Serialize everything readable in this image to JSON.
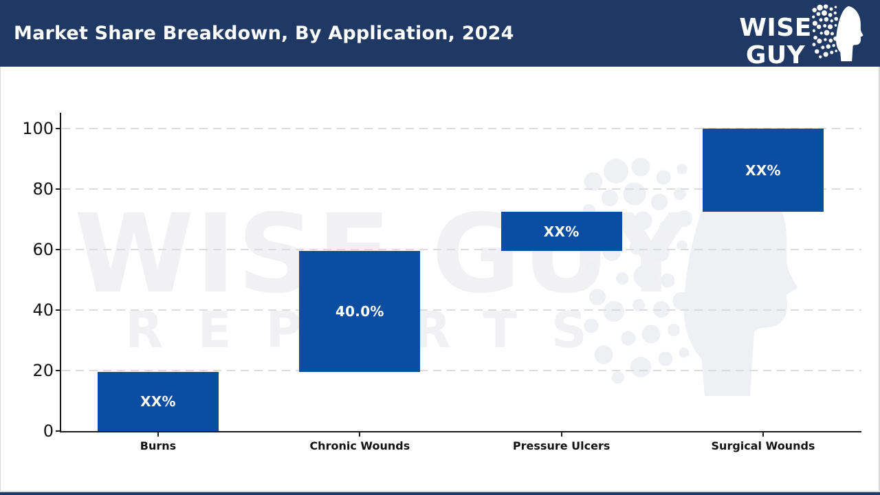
{
  "header": {
    "title": "Market Share Breakdown, By Application, 2024",
    "logo_line1": "WISE GUY",
    "logo_line2": "REPORTS",
    "background_color": "#1f3864"
  },
  "watermark": {
    "line1": "WISE GUY",
    "line2": "REPORTS"
  },
  "chart_data": {
    "type": "bar",
    "subtype": "waterfall-floating-bars",
    "title": "Market Share Breakdown, By Application, 2024",
    "categories": [
      "Burns",
      "Chronic Wounds",
      "Pressure Ulcers",
      "Surgical Wounds"
    ],
    "series": [
      {
        "name": "Market Share (%)",
        "base": [
          0,
          19.5,
          59.5,
          72.5
        ],
        "top": [
          19.5,
          59.5,
          72.5,
          100
        ],
        "segment_values": [
          19.5,
          40.0,
          13.0,
          27.5
        ]
      }
    ],
    "bar_labels": [
      "XX%",
      "40.0%",
      "XX%",
      "XX%"
    ],
    "xlabel": "",
    "ylabel": "",
    "ylim": [
      0,
      105
    ],
    "yticks": [
      0,
      20,
      40,
      60,
      80,
      100
    ],
    "grid": "horizontal-dashed",
    "legend": "none",
    "bar_color": "#0b4da1",
    "grid_color": "#dcdcdc"
  }
}
